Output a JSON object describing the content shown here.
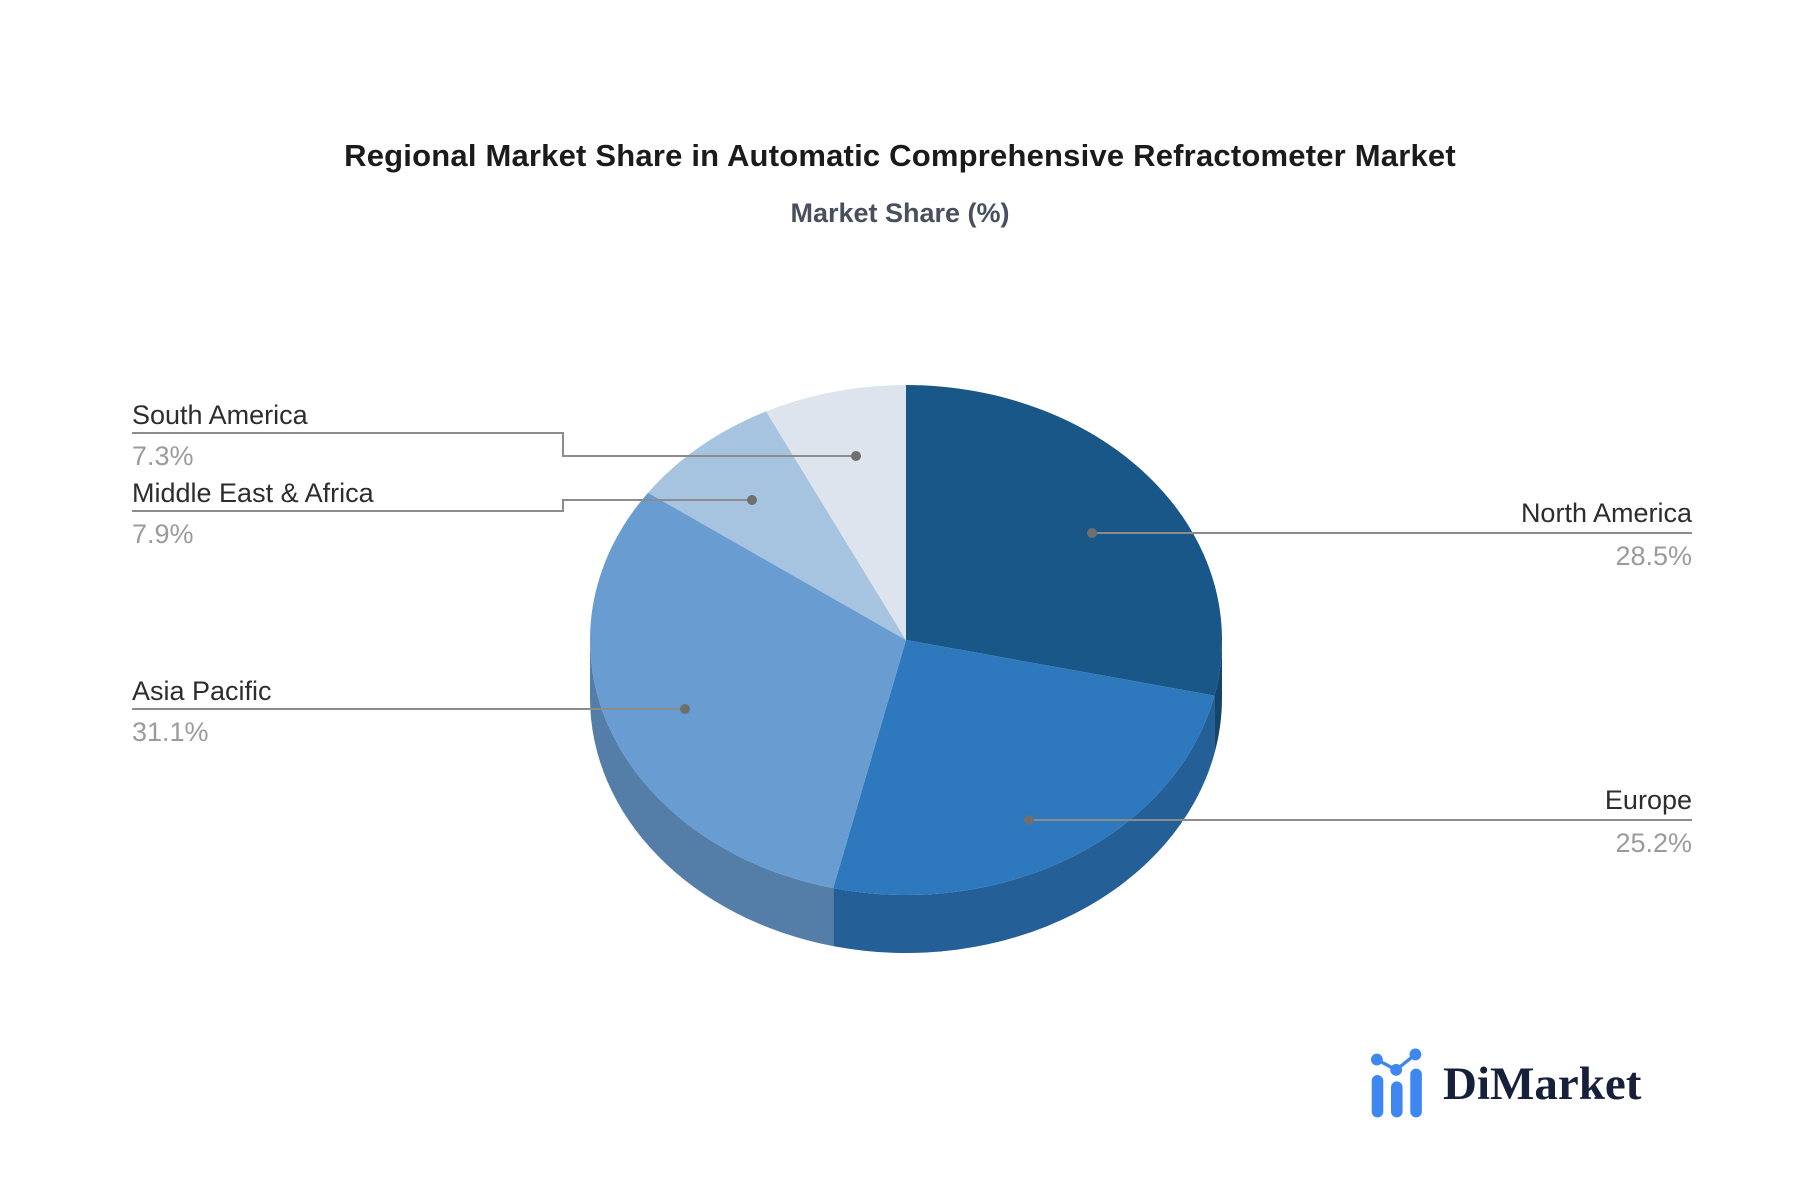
{
  "chart_data": {
    "type": "pie",
    "title": "Regional Market Share in Automatic Comprehensive Refractometer Market",
    "subtitle": "Market Share (%)",
    "unit": "%",
    "legend_position": "callout-labels",
    "style": "3d-pie",
    "slices": [
      {
        "label": "North America",
        "value": 28.5,
        "display": "28.5%",
        "color": "#1a5789",
        "side_color": "#154569"
      },
      {
        "label": "Europe",
        "value": 25.2,
        "display": "25.2%",
        "color": "#2e78be",
        "side_color": "#245f97"
      },
      {
        "label": "Asia Pacific",
        "value": 31.1,
        "display": "31.1%",
        "color": "#699cd1",
        "side_color": "#547da7"
      },
      {
        "label": "Middle East & Africa",
        "value": 7.9,
        "display": "7.9%",
        "color": "#a6c3df",
        "side_color": "#84a0bd"
      },
      {
        "label": "South America",
        "value": 7.3,
        "display": "7.3%",
        "color": "#dee4ed",
        "side_color": "#b5bfcc"
      }
    ],
    "callout_line_color": "#8c8c8c",
    "callout_dot_color": "#6f6f6f"
  },
  "logo": {
    "text": "DiMarket",
    "icon": "bar-chart-logo-icon",
    "icon_color": "#3e87f0",
    "text_color": "#16203a"
  }
}
